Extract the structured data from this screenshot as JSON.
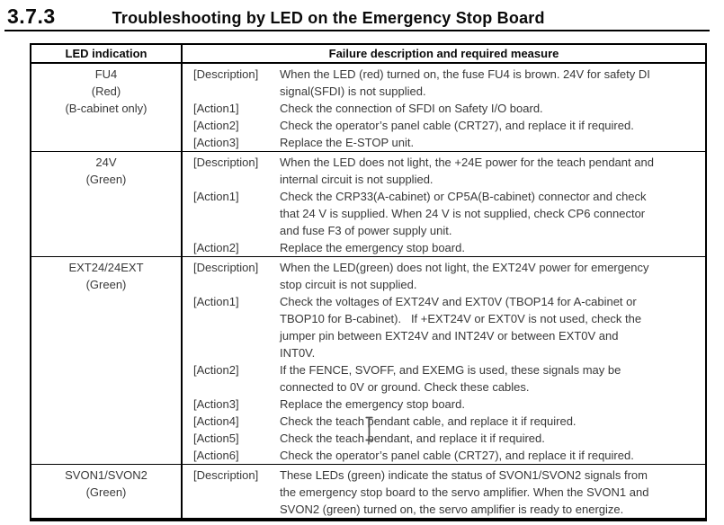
{
  "page": {
    "section_number": "3.7.3",
    "section_title": "Troubleshooting by LED on the Emergency Stop Board"
  },
  "theme": {
    "border_color": "#000000",
    "heading_color": "#0a0a0a",
    "body_text_color": "#383838",
    "background": "#ffffff"
  },
  "table": {
    "headers": [
      "LED indication",
      "Failure description and required measure"
    ],
    "rows": [
      {
        "led": [
          "FU4",
          "(Red)",
          "(B-cabinet only)"
        ],
        "items": [
          {
            "label": "[Description]",
            "text": "When the LED (red) turned on, the fuse FU4 is brown. 24V for safety DI\nsignal(SFDI) is not supplied."
          },
          {
            "label": "[Action1]",
            "text": "Check the connection of SFDI on Safety I/O board."
          },
          {
            "label": "[Action2]",
            "text": "Check the operator’s panel cable (CRT27), and replace it if required."
          },
          {
            "label": "[Action3]",
            "text": "Replace the E-STOP unit."
          }
        ]
      },
      {
        "led": [
          "24V",
          "(Green)"
        ],
        "items": [
          {
            "label": "[Description]",
            "text": "When the LED does not light, the +24E power for the teach pendant and\ninternal circuit is not supplied."
          },
          {
            "label": "[Action1]",
            "text": "Check the CRP33(A-cabinet) or CP5A(B-cabinet) connector and check\nthat 24 V is supplied. When 24 V is not supplied, check CP6 connector\nand fuse F3 of power supply unit."
          },
          {
            "label": "[Action2]",
            "text": "Replace the emergency stop board."
          }
        ]
      },
      {
        "led": [
          "EXT24/24EXT",
          "(Green)"
        ],
        "items": [
          {
            "label": "[Description]",
            "text": "When the LED(green) does not light, the EXT24V power for emergency\nstop circuit is not supplied."
          },
          {
            "label": "[Action1]",
            "text": "Check the voltages of EXT24V and EXT0V (TBOP14 for A-cabinet or\nTBOP10 for B-cabinet).   If +EXT24V or EXT0V is not used, check the\njumper pin between EXT24V and INT24V or between EXT0V and\nINT0V."
          },
          {
            "label": "[Action2]",
            "text": "If the FENCE, SVOFF, and EXEMG is used, these signals may be\nconnected to 0V or ground. Check these cables."
          },
          {
            "label": "[Action3]",
            "text": "Replace the emergency stop board."
          },
          {
            "label": "[Action4]",
            "text": "Check the teach pendant cable, and replace it if required."
          },
          {
            "label": "[Action5]",
            "text": "Check the teach pendant, and replace it if required."
          },
          {
            "label": "[Action6]",
            "text": "Check the operator’s panel cable (CRT27), and replace it if required."
          }
        ]
      },
      {
        "led": [
          "SVON1/SVON2",
          "(Green)"
        ],
        "items": [
          {
            "label": "[Description]",
            "text": "These LEDs (green) indicate the status of SVON1/SVON2 signals from\nthe emergency stop board to the servo amplifier. When the SVON1 and\nSVON2 (green) turned on, the servo amplifier is ready to energize."
          }
        ]
      }
    ]
  },
  "cursor": {
    "type": "text-ibeam"
  }
}
